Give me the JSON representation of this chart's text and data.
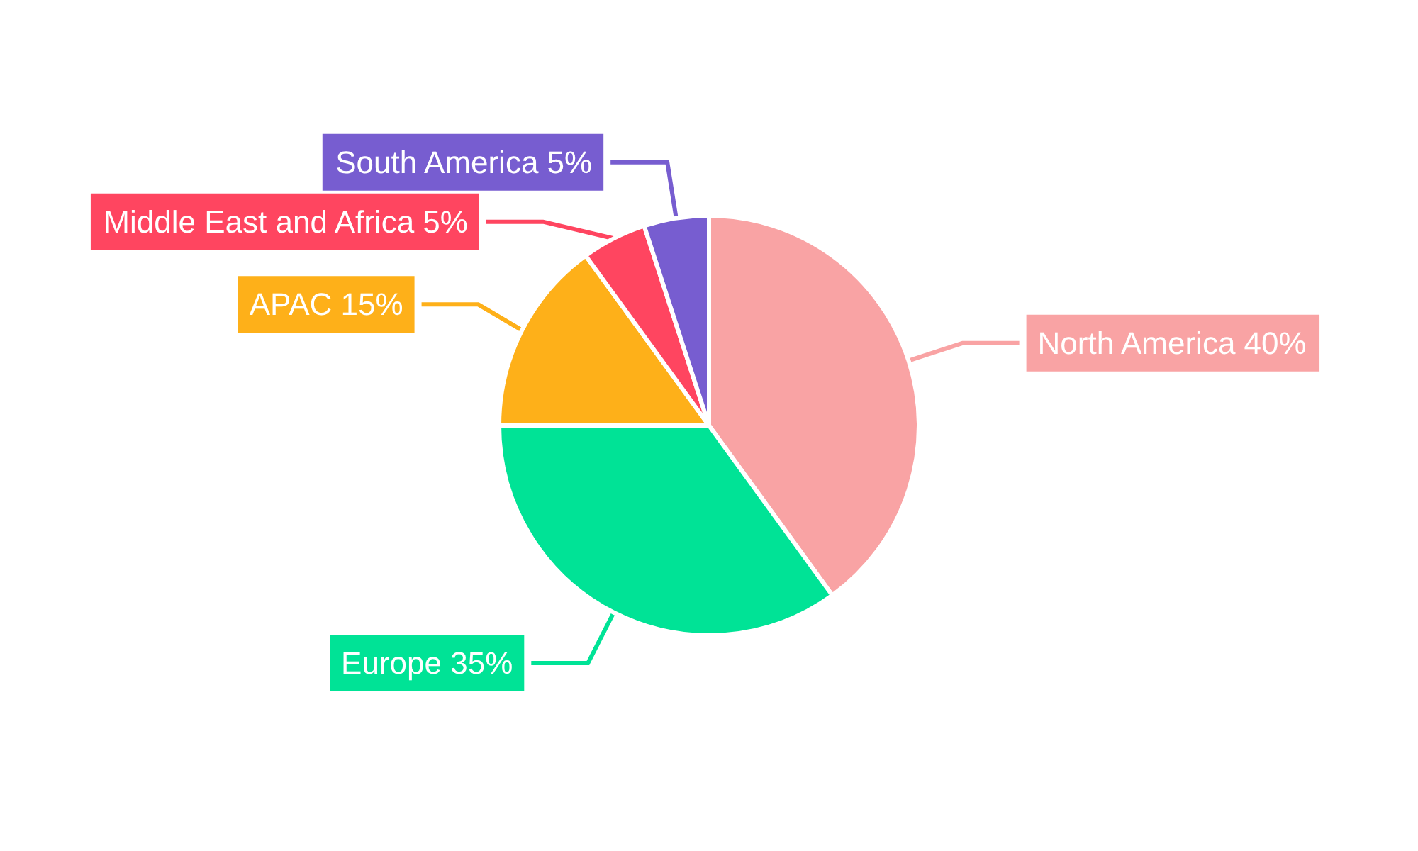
{
  "chart_data": {
    "type": "pie",
    "categories": [
      "North America",
      "Europe",
      "APAC",
      "Middle East and Africa",
      "South America"
    ],
    "values": [
      40,
      35,
      15,
      5,
      5
    ],
    "value_labels": [
      "40%",
      "35%",
      "15%",
      "5%",
      "5%"
    ],
    "colors": [
      "#f9a3a4",
      "#00e396",
      "#feb019",
      "#ff4560",
      "#775dd0"
    ],
    "legend": false
  }
}
